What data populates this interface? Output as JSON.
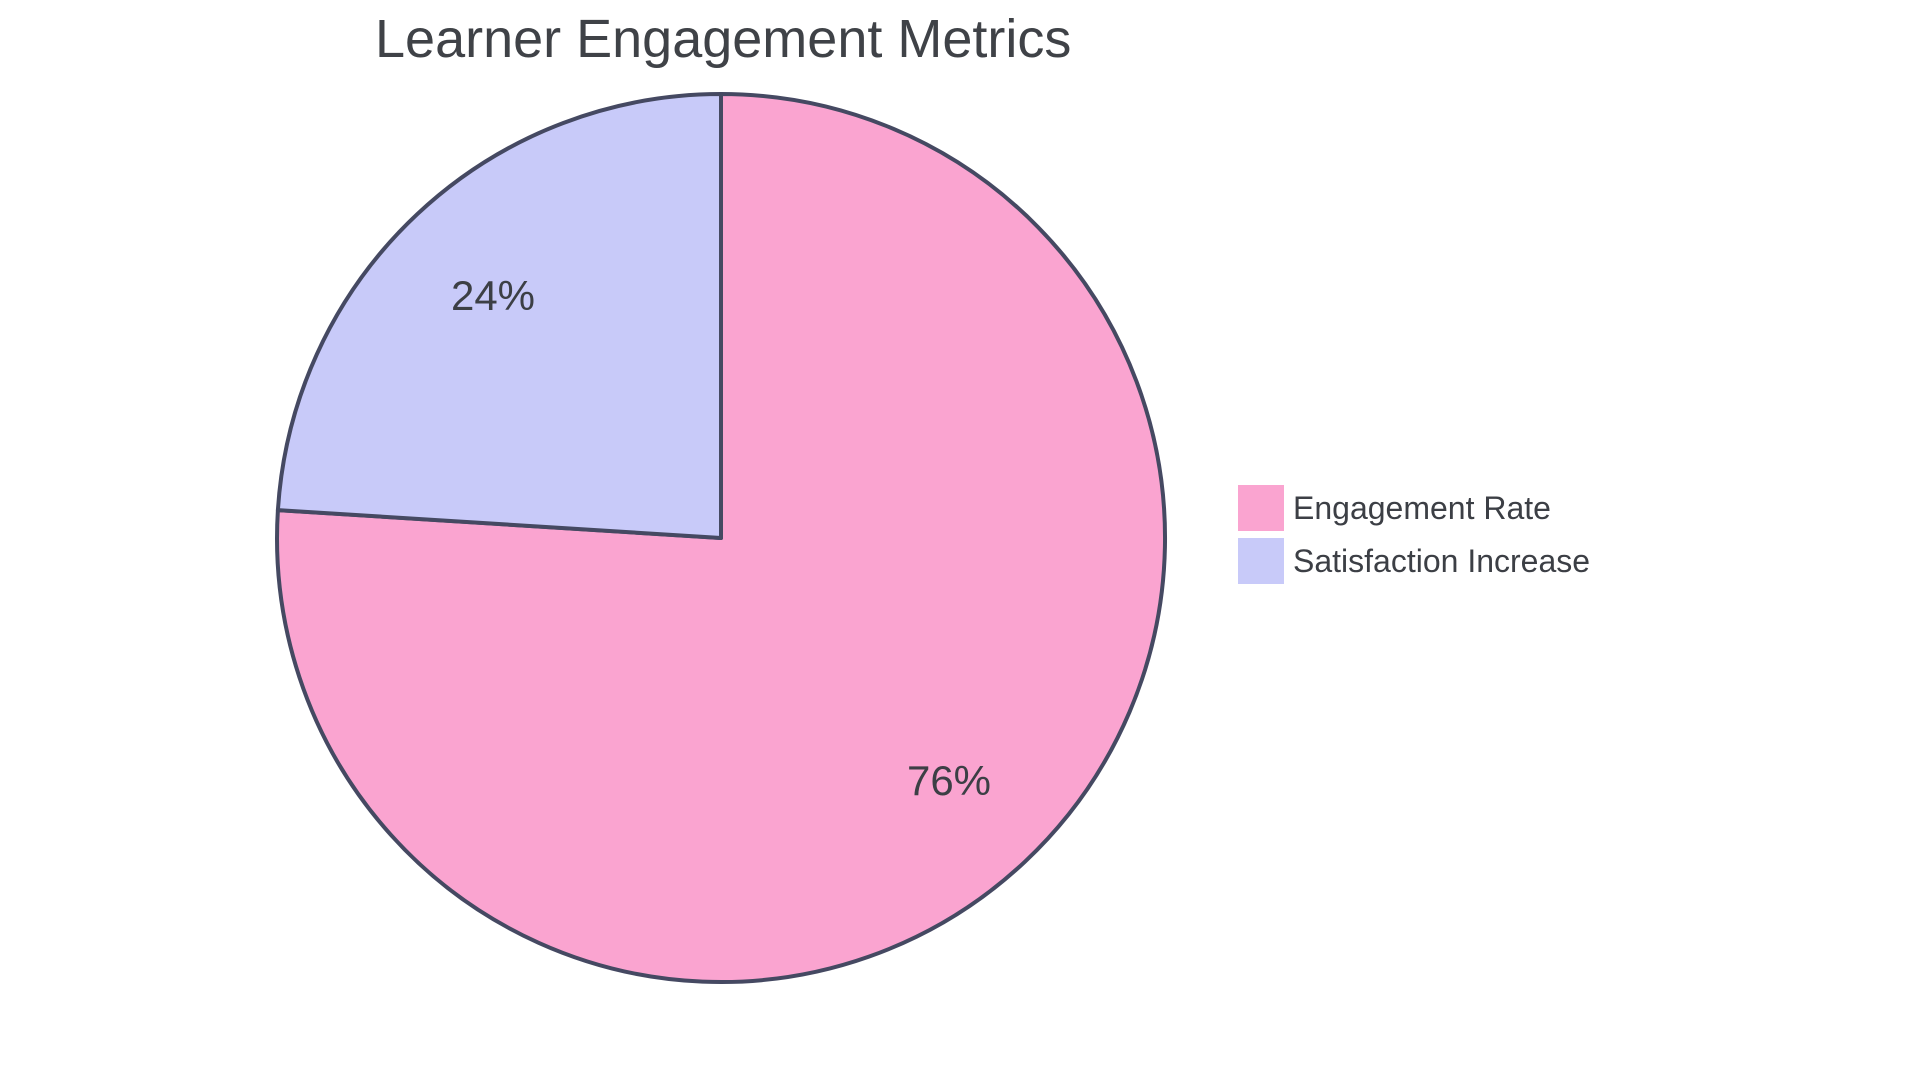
{
  "chart_data": {
    "type": "pie",
    "title": "Learner Engagement Metrics",
    "slices": [
      {
        "label": "Engagement Rate",
        "value": 76,
        "pct_label": "76%",
        "color": "#FAA4D0"
      },
      {
        "label": "Satisfaction Increase",
        "value": 24,
        "pct_label": "24%",
        "color": "#C8CAF9"
      }
    ],
    "total": 100,
    "start_angle": "top",
    "direction": "clockwise",
    "legend_position": "right",
    "grid": false,
    "style": {
      "slice_stroke": "#454962",
      "slice_stroke_width": 4,
      "title_color": "#3F4247",
      "text_color": "#3C3F45",
      "background": "#FFFFFF"
    }
  }
}
